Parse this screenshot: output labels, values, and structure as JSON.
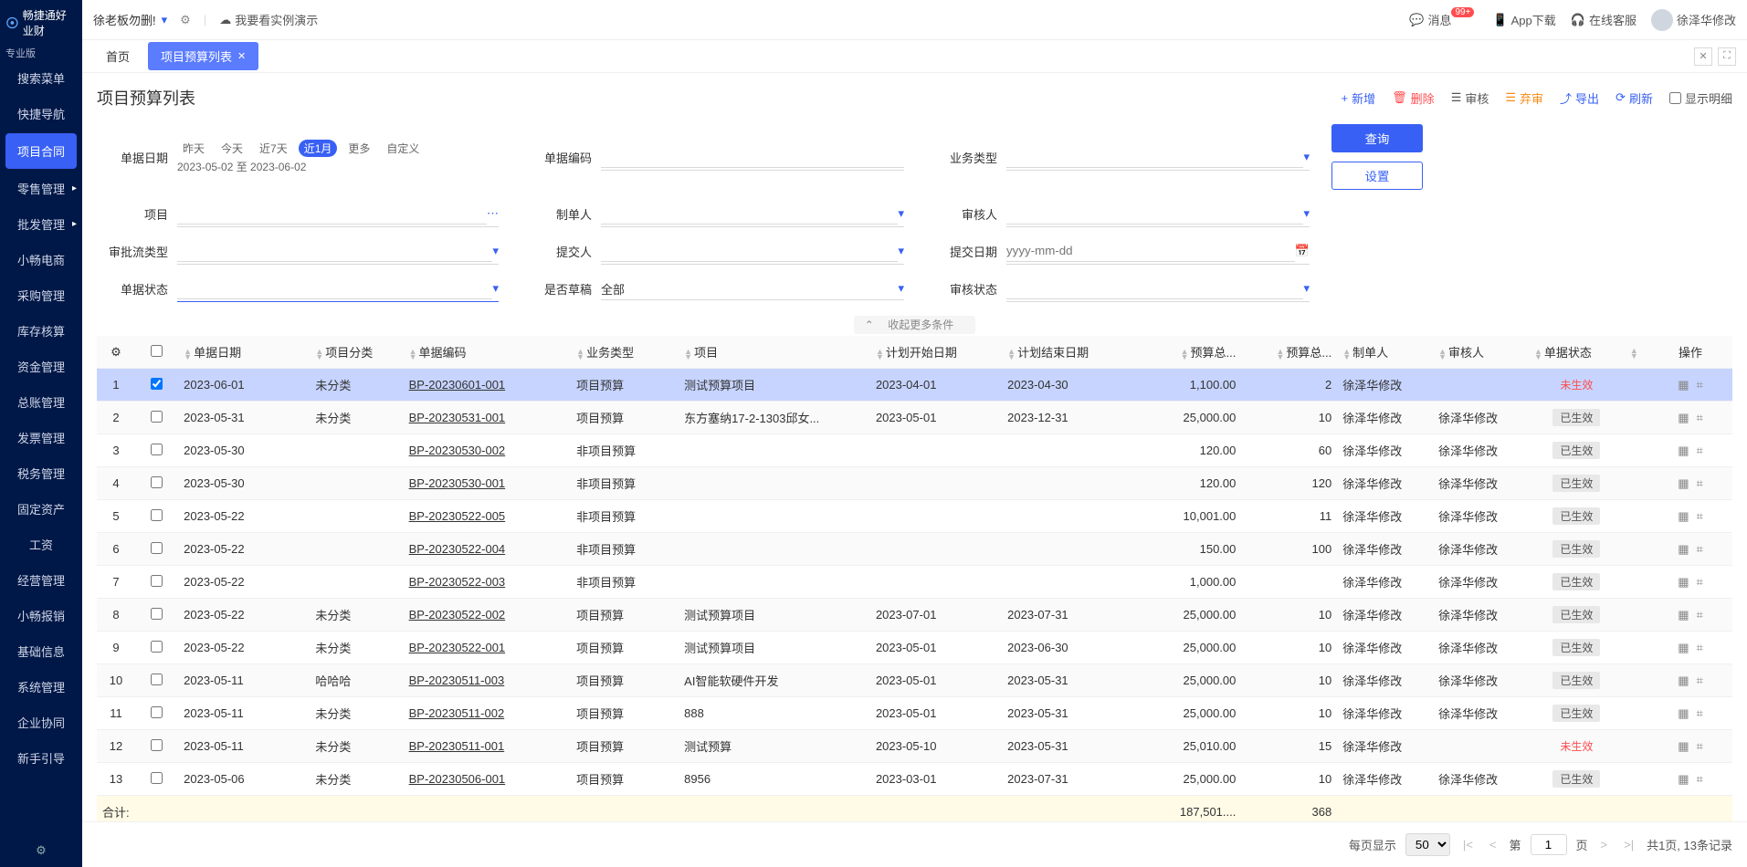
{
  "brand": {
    "name": "畅捷通好业财",
    "edition": "专业版"
  },
  "topbar": {
    "org": "徐老板勿删!",
    "demo": "我要看实例演示",
    "msg": "消息",
    "msg_badge": "99+",
    "app": "App下载",
    "cs": "在线客服",
    "user": "徐泽华修改"
  },
  "sidebar": {
    "items": [
      {
        "label": "搜索菜单"
      },
      {
        "label": "快捷导航"
      },
      {
        "label": "项目合同",
        "active": true
      },
      {
        "label": "零售管理",
        "expand": true
      },
      {
        "label": "批发管理",
        "expand": true
      },
      {
        "label": "小畅电商"
      },
      {
        "label": "采购管理"
      },
      {
        "label": "库存核算"
      },
      {
        "label": "资金管理"
      },
      {
        "label": "总账管理"
      },
      {
        "label": "发票管理"
      },
      {
        "label": "税务管理"
      },
      {
        "label": "固定资产"
      },
      {
        "label": "工资"
      },
      {
        "label": "经营管理"
      },
      {
        "label": "小畅报销"
      },
      {
        "label": "基础信息"
      },
      {
        "label": "系统管理"
      },
      {
        "label": "企业协同"
      },
      {
        "label": "新手引导"
      }
    ]
  },
  "tabs": {
    "home": "首页",
    "current": "项目预算列表"
  },
  "page": {
    "title": "项目预算列表"
  },
  "toolbar": {
    "add": "新增",
    "del": "删除",
    "audit": "审核",
    "abandon": "弃审",
    "export": "导出",
    "refresh": "刷新",
    "detail": "显示明细"
  },
  "filters": {
    "date_label": "单据日期",
    "date_chips": [
      "昨天",
      "今天",
      "近7天",
      "近1月",
      "更多",
      "自定义"
    ],
    "date_active": "近1月",
    "date_range": "2023-05-02 至 2023-06-02",
    "code_label": "单据编码",
    "btype_label": "业务类型",
    "project_label": "项目",
    "maker_label": "制单人",
    "approver_label": "审核人",
    "flow_label": "审批流类型",
    "submitter_label": "提交人",
    "submit_date_label": "提交日期",
    "submit_date_ph": "yyyy-mm-dd",
    "status_label": "单据状态",
    "draft_label": "是否草稿",
    "draft_value": "全部",
    "audit_status_label": "审核状态",
    "query_btn": "查询",
    "settings_btn": "设置",
    "collapse": "收起更多条件"
  },
  "table": {
    "headers": {
      "date": "单据日期",
      "cat": "项目分类",
      "code": "单据编码",
      "btype": "业务类型",
      "proj": "项目",
      "sdate": "计划开始日期",
      "edate": "计划结束日期",
      "amt": "预算总...",
      "cnt": "预算总...",
      "maker": "制单人",
      "appr": "审核人",
      "stat": "单据状态",
      "ops": "操作"
    },
    "rows": [
      {
        "n": 1,
        "date": "2023-06-01",
        "cat": "未分类",
        "code": "BP-20230601-001",
        "btype": "项目预算",
        "proj": "测试预算项目",
        "sdate": "2023-04-01",
        "edate": "2023-04-30",
        "amt": "1,100.00",
        "cnt": "2",
        "maker": "徐泽华修改",
        "appr": "",
        "stat": "未生效",
        "bad": true,
        "sel": true
      },
      {
        "n": 2,
        "date": "2023-05-31",
        "cat": "未分类",
        "code": "BP-20230531-001",
        "btype": "项目预算",
        "proj": "东方塞纳17-2-1303邱女...",
        "sdate": "2023-05-01",
        "edate": "2023-12-31",
        "amt": "25,000.00",
        "cnt": "10",
        "maker": "徐泽华修改",
        "appr": "徐泽华修改",
        "stat": "已生效"
      },
      {
        "n": 3,
        "date": "2023-05-30",
        "cat": "",
        "code": "BP-20230530-002",
        "btype": "非项目预算",
        "proj": "",
        "sdate": "",
        "edate": "",
        "amt": "120.00",
        "cnt": "60",
        "maker": "徐泽华修改",
        "appr": "徐泽华修改",
        "stat": "已生效"
      },
      {
        "n": 4,
        "date": "2023-05-30",
        "cat": "",
        "code": "BP-20230530-001",
        "btype": "非项目预算",
        "proj": "",
        "sdate": "",
        "edate": "",
        "amt": "120.00",
        "cnt": "120",
        "maker": "徐泽华修改",
        "appr": "徐泽华修改",
        "stat": "已生效"
      },
      {
        "n": 5,
        "date": "2023-05-22",
        "cat": "",
        "code": "BP-20230522-005",
        "btype": "非项目预算",
        "proj": "",
        "sdate": "",
        "edate": "",
        "amt": "10,001.00",
        "cnt": "11",
        "maker": "徐泽华修改",
        "appr": "徐泽华修改",
        "stat": "已生效"
      },
      {
        "n": 6,
        "date": "2023-05-22",
        "cat": "",
        "code": "BP-20230522-004",
        "btype": "非项目预算",
        "proj": "",
        "sdate": "",
        "edate": "",
        "amt": "150.00",
        "cnt": "100",
        "maker": "徐泽华修改",
        "appr": "徐泽华修改",
        "stat": "已生效"
      },
      {
        "n": 7,
        "date": "2023-05-22",
        "cat": "",
        "code": "BP-20230522-003",
        "btype": "非项目预算",
        "proj": "",
        "sdate": "",
        "edate": "",
        "amt": "1,000.00",
        "cnt": "",
        "maker": "徐泽华修改",
        "appr": "徐泽华修改",
        "stat": "已生效"
      },
      {
        "n": 8,
        "date": "2023-05-22",
        "cat": "未分类",
        "code": "BP-20230522-002",
        "btype": "项目预算",
        "proj": "测试预算项目",
        "sdate": "2023-07-01",
        "edate": "2023-07-31",
        "amt": "25,000.00",
        "cnt": "10",
        "maker": "徐泽华修改",
        "appr": "徐泽华修改",
        "stat": "已生效"
      },
      {
        "n": 9,
        "date": "2023-05-22",
        "cat": "未分类",
        "code": "BP-20230522-001",
        "btype": "项目预算",
        "proj": "测试预算项目",
        "sdate": "2023-05-01",
        "edate": "2023-06-30",
        "amt": "25,000.00",
        "cnt": "10",
        "maker": "徐泽华修改",
        "appr": "徐泽华修改",
        "stat": "已生效"
      },
      {
        "n": 10,
        "date": "2023-05-11",
        "cat": "哈哈哈",
        "code": "BP-20230511-003",
        "btype": "项目预算",
        "proj": "AI智能软硬件开发",
        "sdate": "2023-05-01",
        "edate": "2023-05-31",
        "amt": "25,000.00",
        "cnt": "10",
        "maker": "徐泽华修改",
        "appr": "徐泽华修改",
        "stat": "已生效"
      },
      {
        "n": 11,
        "date": "2023-05-11",
        "cat": "未分类",
        "code": "BP-20230511-002",
        "btype": "项目预算",
        "proj": "888",
        "sdate": "2023-05-01",
        "edate": "2023-05-31",
        "amt": "25,000.00",
        "cnt": "10",
        "maker": "徐泽华修改",
        "appr": "徐泽华修改",
        "stat": "已生效"
      },
      {
        "n": 12,
        "date": "2023-05-11",
        "cat": "未分类",
        "code": "BP-20230511-001",
        "btype": "项目预算",
        "proj": "测试预算",
        "sdate": "2023-05-10",
        "edate": "2023-05-31",
        "amt": "25,010.00",
        "cnt": "15",
        "maker": "徐泽华修改",
        "appr": "",
        "stat": "未生效",
        "bad": true
      },
      {
        "n": 13,
        "date": "2023-05-06",
        "cat": "未分类",
        "code": "BP-20230506-001",
        "btype": "项目预算",
        "proj": "8956",
        "sdate": "2023-03-01",
        "edate": "2023-07-31",
        "amt": "25,000.00",
        "cnt": "10",
        "maker": "徐泽华修改",
        "appr": "徐泽华修改",
        "stat": "已生效"
      }
    ],
    "footer": {
      "label": "合计:",
      "amt": "187,501....",
      "cnt": "368"
    }
  },
  "pager": {
    "per_label": "每页显示",
    "per_value": "50",
    "page_label_pre": "第",
    "page_value": "1",
    "page_label_post": "页",
    "summary": "共1页, 13条记录"
  }
}
